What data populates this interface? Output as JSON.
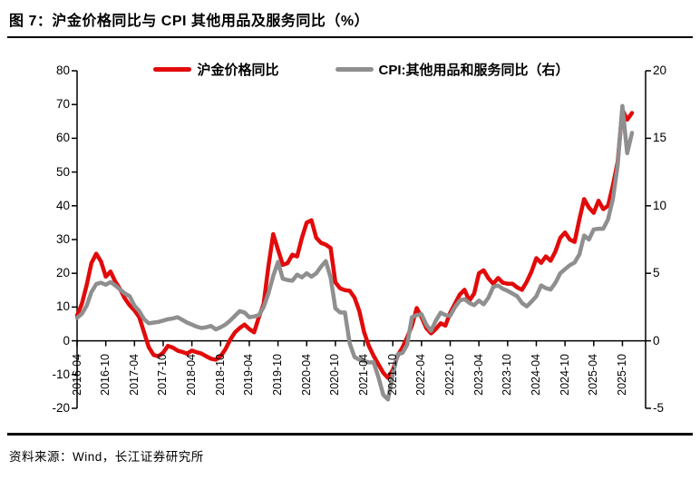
{
  "header": {
    "title": "图 7：沪金价格同比与 CPI 其他用品及服务同比（%）"
  },
  "footer": {
    "source": "资料来源：Wind，长江证券研究所"
  },
  "colors": {
    "red_series": "#e20a0a",
    "gray_series": "#8f8f8f",
    "axis": "#000000"
  },
  "chart_data": {
    "type": "line",
    "title": "沪金价格同比与 CPI 其他用品及服务同比（%）",
    "x_start_month": "2016-04",
    "x_end_month": "2025-12",
    "x_frequency": "monthly",
    "grid": false,
    "legend_position": "top-center",
    "x_tick_labels": [
      "2016-04",
      "2016-10",
      "2017-04",
      "2017-10",
      "2018-04",
      "2018-10",
      "2019-04",
      "2019-10",
      "2020-04",
      "2020-10",
      "2021-04",
      "2021-10",
      "2022-04",
      "2022-10",
      "2023-04",
      "2023-10",
      "2024-04",
      "2024-10",
      "2025-04",
      "2025-10"
    ],
    "x_tick_every_n_points": 6,
    "left_axis": {
      "min": -20,
      "max": 80,
      "ticks": [
        80,
        70,
        60,
        50,
        40,
        30,
        20,
        10,
        0,
        -10,
        -20
      ]
    },
    "right_axis": {
      "min": -5,
      "max": 20,
      "ticks": [
        20,
        15,
        10,
        5,
        0,
        -5
      ]
    },
    "series": [
      {
        "name": "沪金价格同比",
        "axis": "left",
        "color": "#e20a0a",
        "values": [
          7.5,
          11,
          16.5,
          23,
          25.8,
          23.5,
          19,
          20.5,
          17.5,
          15.3,
          12.5,
          10.5,
          9,
          7,
          2.5,
          -1.9,
          -4.2,
          -4.6,
          -3.5,
          -1.5,
          -2,
          -2.9,
          -3.3,
          -3.8,
          -2.9,
          -3.4,
          -3.8,
          -4.6,
          -5.3,
          -5.6,
          -4.6,
          -2.5,
          0.3,
          2.5,
          3.8,
          4.8,
          3.5,
          2.5,
          7,
          11,
          22,
          31.6,
          27,
          22.5,
          23,
          25.5,
          25,
          30.5,
          35,
          35.7,
          30.5,
          29,
          28.5,
          27.5,
          17.3,
          15.5,
          15,
          14.8,
          12.8,
          8.8,
          2.5,
          -1.5,
          -4.5,
          -7,
          -9.5,
          -11,
          -8.6,
          -4.5,
          -2,
          1,
          4.5,
          9.7,
          7,
          3.8,
          2.2,
          3.5,
          5.2,
          4.5,
          8.3,
          11,
          13.7,
          15.1,
          11.9,
          14,
          20,
          20.9,
          18.5,
          16.9,
          18.6,
          17.2,
          16.9,
          16.9,
          15.8,
          15.1,
          17.5,
          20.5,
          24.5,
          23.1,
          25,
          23.7,
          26.5,
          30.5,
          32.1,
          30,
          29.3,
          36,
          42,
          39.5,
          37.9,
          41.5,
          39,
          40,
          46,
          53,
          68.5,
          65.5,
          67.5
        ]
      },
      {
        "name": "CPI:其他用品和服务同比（右）",
        "axis": "right",
        "color": "#8f8f8f",
        "values": [
          1.7,
          2,
          2.6,
          3.6,
          4.2,
          4.3,
          4.15,
          4.35,
          4.1,
          3.8,
          3.5,
          3.3,
          2.6,
          2.2,
          1.6,
          1.3,
          1.35,
          1.4,
          1.5,
          1.6,
          1.65,
          1.75,
          1.55,
          1.35,
          1.2,
          1.05,
          0.95,
          1,
          1.1,
          0.85,
          1,
          1.2,
          1.5,
          1.85,
          2.2,
          2.1,
          1.75,
          1.8,
          1.9,
          2.5,
          3.5,
          4.8,
          5.85,
          4.6,
          4.5,
          4.45,
          4.9,
          4.7,
          5,
          4.75,
          5,
          5.5,
          5.9,
          4.7,
          2.4,
          2.1,
          2.1,
          -0.2,
          -1.2,
          -1.4,
          -1.5,
          -1.6,
          -1.6,
          -2.7,
          -4,
          -4.35,
          -2.5,
          -1,
          -0.9,
          -0.3,
          1.75,
          1.9,
          1.97,
          1.2,
          0.74,
          1.5,
          2.08,
          1.9,
          1.86,
          2.5,
          2.98,
          3.09,
          2.8,
          2.64,
          2.98,
          2.7,
          3.2,
          3.99,
          4.1,
          3.85,
          3.7,
          3.5,
          3.3,
          2.8,
          2.55,
          2.9,
          3.3,
          4.1,
          3.9,
          3.8,
          4.3,
          5,
          5.3,
          5.6,
          5.8,
          6.4,
          7.8,
          7.5,
          8.25,
          8.3,
          8.3,
          9,
          10.5,
          13,
          17.4,
          13.9,
          15.4
        ]
      }
    ]
  }
}
